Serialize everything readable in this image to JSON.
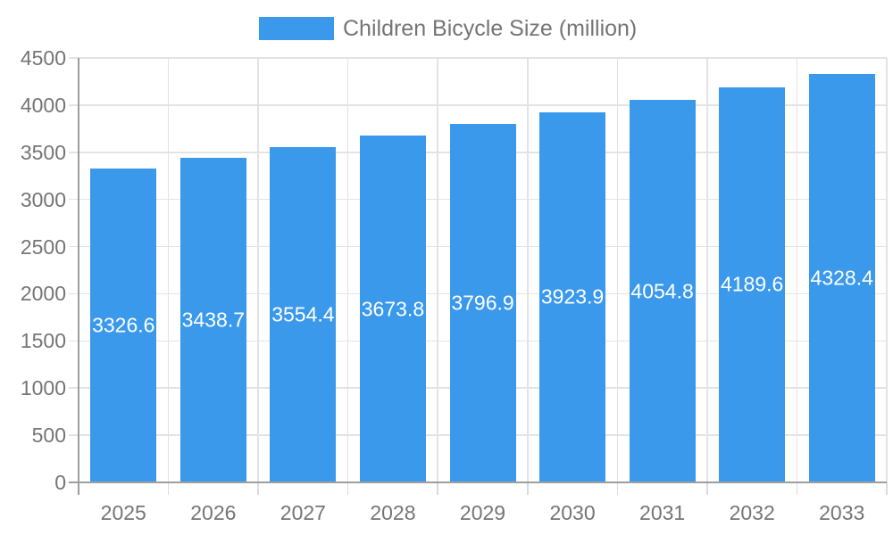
{
  "legend": {
    "label": "Children Bicycle Size (million)"
  },
  "colors": {
    "bar": "#3b99ec",
    "grid_line": "#e3e3e3",
    "axis_line": "#9e9e9e",
    "tick_text": "#757575",
    "bar_label_text": "#ffffff",
    "background": "#ffffff"
  },
  "chart_data": {
    "type": "bar",
    "title": "Children Bicycle Size (million)",
    "series_name": "Children Bicycle Size (million)",
    "categories": [
      "2025",
      "2026",
      "2027",
      "2028",
      "2029",
      "2030",
      "2031",
      "2032",
      "2033"
    ],
    "values": [
      3326.6,
      3438.7,
      3554.4,
      3673.8,
      3796.9,
      3923.9,
      4054.8,
      4189.6,
      4328.4
    ],
    "xlabel": "",
    "ylabel": "",
    "ylim": [
      0,
      4500
    ],
    "y_ticks": [
      0,
      500,
      1000,
      1500,
      2000,
      2500,
      3000,
      3500,
      4000,
      4500
    ],
    "grid": true,
    "legend_position": "top",
    "bar_labels_shown": true,
    "bar_label_position": "center"
  }
}
